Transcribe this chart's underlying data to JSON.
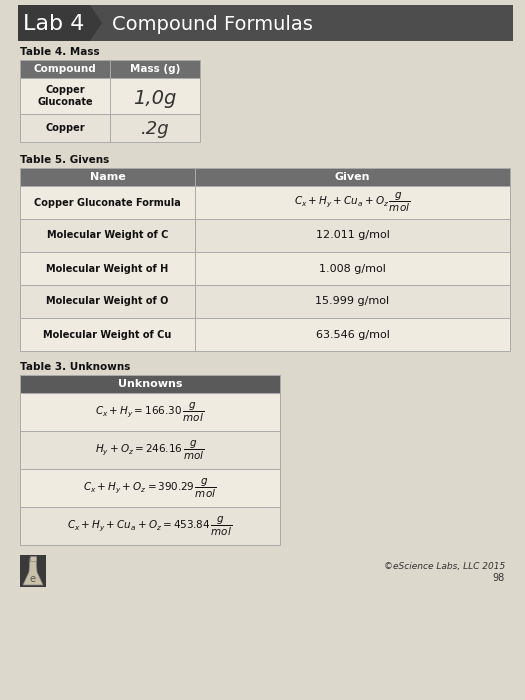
{
  "title_lab": "Lab 4",
  "title_main": "Compound Formulas",
  "bg_color": "#ddd8cc",
  "header_bg": "#4d4d4d",
  "header_dark": "#3a3a3a",
  "table4_label": "Table 4. Mass",
  "table4_cols": [
    "Compound",
    "Mass (g)"
  ],
  "table4_row1_name": "Copper\nGluconate",
  "table4_row1_val": "1,0g",
  "table4_row2_name": "Copper",
  "table4_row2_val": ".2g",
  "table5_label": "Table 5. Givens",
  "table5_col1": "Name",
  "table5_col2": "Given",
  "table5_rows": [
    [
      "Copper Gluconate Formula",
      "formula"
    ],
    [
      "Molecular Weight of C",
      "12.011 g/mol"
    ],
    [
      "Molecular Weight of H",
      "1.008 g/mol"
    ],
    [
      "Molecular Weight of O",
      "15.999 g/mol"
    ],
    [
      "Molecular Weight of Cu",
      "63.546 g/mol"
    ]
  ],
  "table3_label": "Table 3. Unknowns",
  "table3_col": "Unknowns",
  "unknowns_header_bg": "#5a5a5a",
  "footer_text": "©eScience Labs, LLC 2015",
  "page_num": "98",
  "cell_light": "#f0ebe0",
  "cell_alt": "#e8e3d8",
  "table_header_bg": "#6e6e6e",
  "border_col": "#aaaaaa"
}
